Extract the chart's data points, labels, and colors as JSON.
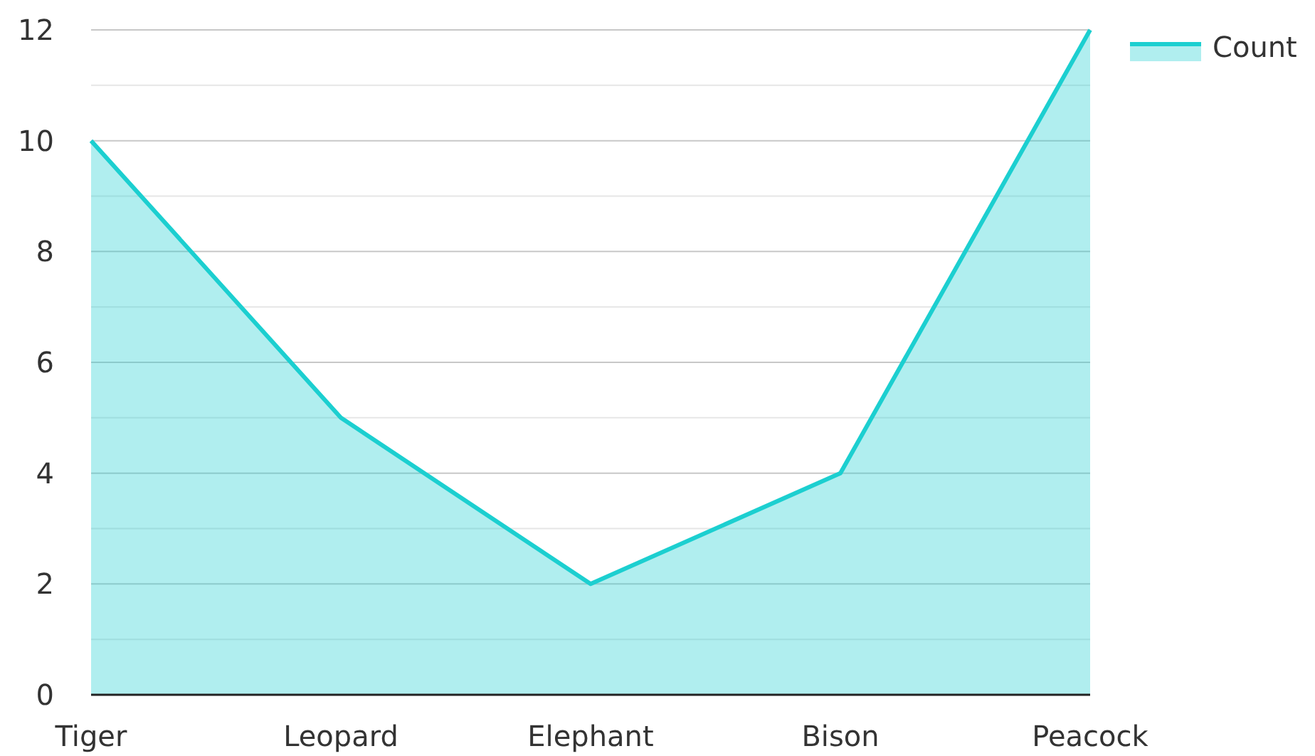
{
  "chart_data": {
    "type": "area",
    "categories": [
      "Tiger",
      "Leopard",
      "Elephant",
      "Bison",
      "Peacock"
    ],
    "series": [
      {
        "name": "Count",
        "color": "#1ccfd0",
        "values": [
          10,
          5,
          2,
          4,
          12
        ]
      }
    ],
    "ylim": [
      0,
      12
    ],
    "yticks": [
      0,
      {
        "value": 1,
        "label": null
      },
      2,
      {
        "value": 3,
        "label": null
      },
      4,
      {
        "value": 5,
        "label": null
      },
      6,
      {
        "value": 7,
        "label": null
      },
      8,
      {
        "value": 9,
        "label": null
      },
      10,
      {
        "value": 11,
        "label": null
      },
      12
    ],
    "grid": "y",
    "legend": "top right"
  }
}
